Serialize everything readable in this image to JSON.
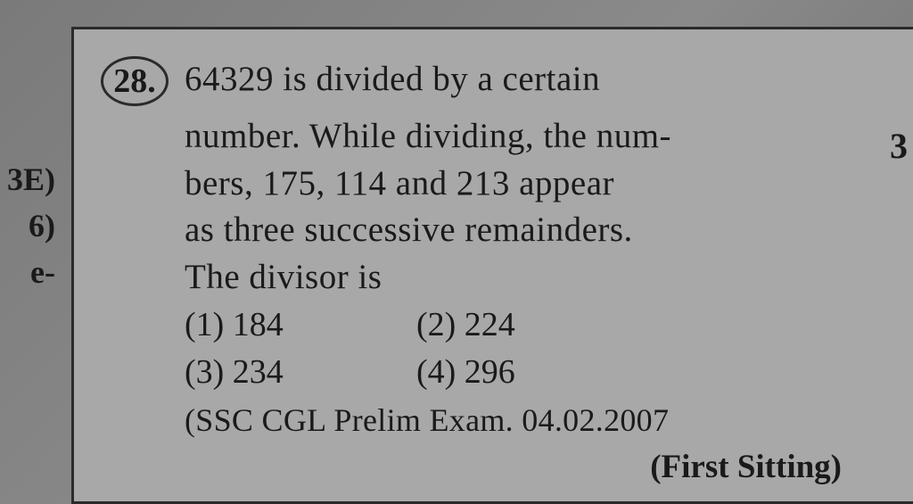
{
  "leftMargin": {
    "label1": "3E)",
    "label2": "6)",
    "label3": "e-"
  },
  "question": {
    "number": "28.",
    "line1": "64329 is divided by a certain",
    "line2": "number. While dividing, the num-",
    "line3": "bers, 175, 114 and 213 appear",
    "line4": "as three successive remainders.",
    "line5": "The divisor is"
  },
  "options": {
    "opt1": "(1) 184",
    "opt2": "(2) 224",
    "opt3": "(3) 234",
    "opt4": "(4) 296"
  },
  "source": {
    "exam": "(SSC CGL Prelim Exam. 04.02.2007",
    "sitting": "(First Sitting)"
  },
  "rightEdge": "3",
  "colors": {
    "text": "#1a1a1a",
    "border": "#2a2a2a",
    "pageBg": "#a8a8a8"
  }
}
